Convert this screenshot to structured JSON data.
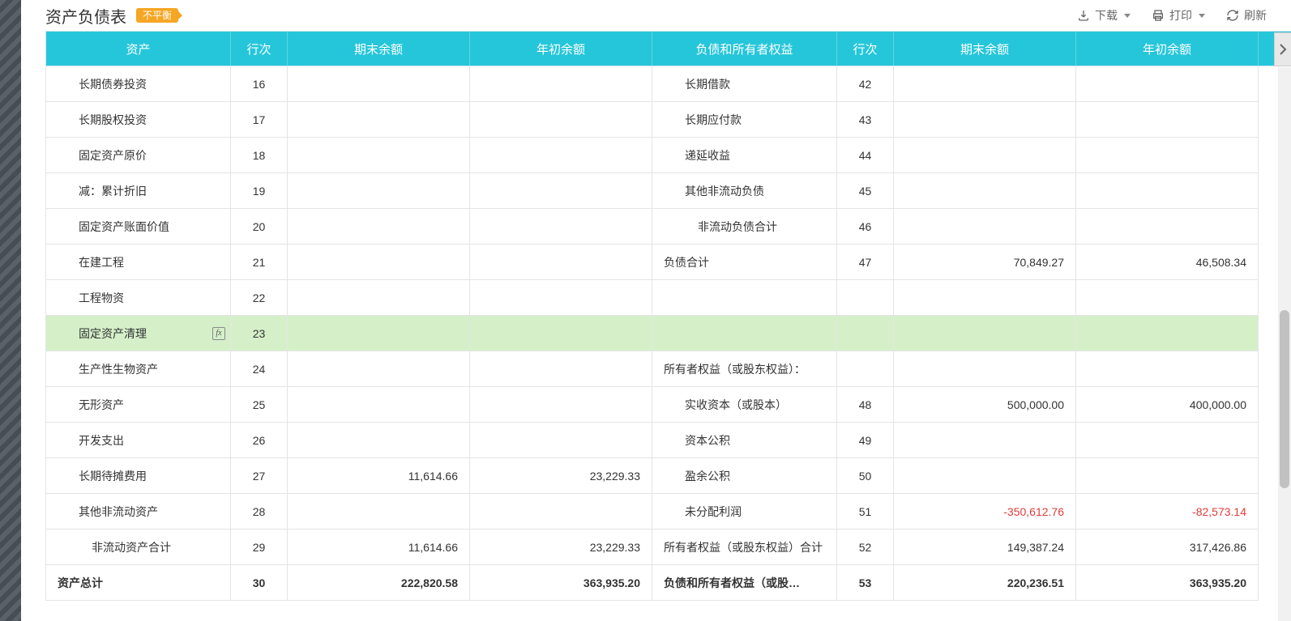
{
  "header": {
    "title": "资产负债表",
    "badge": "不平衡",
    "download": "下载",
    "print": "打印",
    "refresh": "刷新"
  },
  "columns": {
    "asset": "资产",
    "line": "行次",
    "end": "期末余额",
    "begin": "年初余额",
    "liab": "负债和所有者权益",
    "line2": "行次",
    "end2": "期末余额",
    "begin2": "年初余额"
  },
  "rows": [
    {
      "a": "长期债券投资",
      "ai": 1,
      "al": "16",
      "ae": "",
      "ab": "",
      "l": "长期借款",
      "li": 1,
      "ll": "42",
      "le": "",
      "lb": ""
    },
    {
      "a": "长期股权投资",
      "ai": 1,
      "al": "17",
      "ae": "",
      "ab": "",
      "l": "长期应付款",
      "li": 1,
      "ll": "43",
      "le": "",
      "lb": ""
    },
    {
      "a": "固定资产原价",
      "ai": 1,
      "al": "18",
      "ae": "",
      "ab": "",
      "l": "递延收益",
      "li": 1,
      "ll": "44",
      "le": "",
      "lb": ""
    },
    {
      "a": "减：累计折旧",
      "ai": 1,
      "al": "19",
      "ae": "",
      "ab": "",
      "l": "其他非流动负债",
      "li": 1,
      "ll": "45",
      "le": "",
      "lb": ""
    },
    {
      "a": "固定资产账面价值",
      "ai": 1,
      "al": "20",
      "ae": "",
      "ab": "",
      "l": "非流动负债合计",
      "li": 2,
      "ll": "46",
      "le": "",
      "lb": ""
    },
    {
      "a": "在建工程",
      "ai": 1,
      "al": "21",
      "ae": "",
      "ab": "",
      "l": "负债合计",
      "li": 0,
      "ll": "47",
      "le": "70,849.27",
      "lb": "46,508.34"
    },
    {
      "a": "工程物资",
      "ai": 1,
      "al": "22",
      "ae": "",
      "ab": "",
      "l": "",
      "li": 0,
      "ll": "",
      "le": "",
      "lb": ""
    },
    {
      "a": "固定资产清理",
      "ai": 1,
      "al": "23",
      "ae": "",
      "ab": "",
      "hl": true,
      "fx": true,
      "l": "",
      "li": 0,
      "ll": "",
      "le": "",
      "lb": ""
    },
    {
      "a": "生产性生物资产",
      "ai": 1,
      "al": "24",
      "ae": "",
      "ab": "",
      "l": "所有者权益（或股东权益）：",
      "li": 0,
      "ll": "",
      "le": "",
      "lb": ""
    },
    {
      "a": "无形资产",
      "ai": 1,
      "al": "25",
      "ae": "",
      "ab": "",
      "l": "实收资本（或股本）",
      "li": 1,
      "ll": "48",
      "le": "500,000.00",
      "lb": "400,000.00"
    },
    {
      "a": "开发支出",
      "ai": 1,
      "al": "26",
      "ae": "",
      "ab": "",
      "l": "资本公积",
      "li": 1,
      "ll": "49",
      "le": "",
      "lb": ""
    },
    {
      "a": "长期待摊费用",
      "ai": 1,
      "al": "27",
      "ae": "11,614.66",
      "ab": "23,229.33",
      "l": "盈余公积",
      "li": 1,
      "ll": "50",
      "le": "",
      "lb": ""
    },
    {
      "a": "其他非流动资产",
      "ai": 1,
      "al": "28",
      "ae": "",
      "ab": "",
      "l": "未分配利润",
      "li": 1,
      "ll": "51",
      "le": "-350,612.76",
      "le_neg": true,
      "lb": "-82,573.14",
      "lb_neg": true
    },
    {
      "a": "非流动资产合计",
      "ai": 2,
      "al": "29",
      "ae": "11,614.66",
      "ab": "23,229.33",
      "l": "所有者权益（或股东权益）合计",
      "li": 0,
      "ll": "52",
      "le": "149,387.24",
      "lb": "317,426.86"
    },
    {
      "a": "资产总计",
      "ai": 0,
      "al": "30",
      "ae": "222,820.58",
      "ab": "363,935.20",
      "bold": true,
      "l": "负债和所有者权益（或股…",
      "li": 0,
      "ll": "53",
      "le": "220,236.51",
      "lb": "363,935.20"
    }
  ],
  "colors": {
    "header_bg": "#26c6da",
    "highlight_bg": "#d5f0c9",
    "badge_bg": "#f5a623",
    "negative": "#e23b3b",
    "border": "#e5e5e5"
  }
}
